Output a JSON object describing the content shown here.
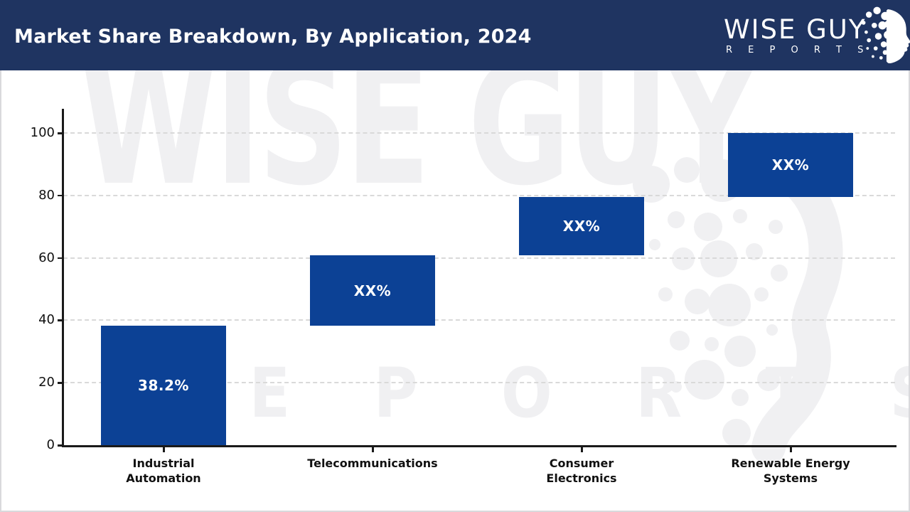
{
  "header": {
    "title": "Market Share Breakdown, By Application, 2024",
    "bg_color": "#1f3461",
    "logo": {
      "wordmark": "WISE GUY",
      "subtext": "R E P O R T S",
      "icon": "dotted-head-profile-icon"
    }
  },
  "watermark": {
    "line1": "WISE GUY",
    "line2": "R E P O R T S",
    "color": "#f0f0f2"
  },
  "chart_data": {
    "type": "bar",
    "subtype": "waterfall",
    "title": "Market Share Breakdown, By Application, 2024",
    "categories": [
      "Industrial Automation",
      "Telecommunications",
      "Consumer Electronics",
      "Renewable Energy Systems"
    ],
    "category_lines": [
      [
        "Industrial",
        "Automation"
      ],
      [
        "Telecommunications"
      ],
      [
        "Consumer",
        "Electronics"
      ],
      [
        "Renewable Energy",
        "Systems"
      ]
    ],
    "segments": [
      {
        "category": "Industrial Automation",
        "start": 0,
        "end": 38.2,
        "label": "38.2%"
      },
      {
        "category": "Telecommunications",
        "start": 38.2,
        "end": 60.8,
        "label": "XX%"
      },
      {
        "category": "Consumer Electronics",
        "start": 60.8,
        "end": 79.6,
        "label": "XX%"
      },
      {
        "category": "Renewable Energy Systems",
        "start": 79.6,
        "end": 100,
        "label": "XX%"
      }
    ],
    "ylim": [
      0,
      100
    ],
    "yticks": [
      0,
      20,
      40,
      60,
      80,
      100
    ],
    "xlabel": "",
    "ylabel": "",
    "grid": {
      "horizontal": true,
      "style": "dashed",
      "color": "#d9d9d9"
    },
    "legend": "none",
    "bar_color": "#0c4195",
    "bar_label_color": "#ffffff",
    "axis_color": "#1a1a1a"
  }
}
